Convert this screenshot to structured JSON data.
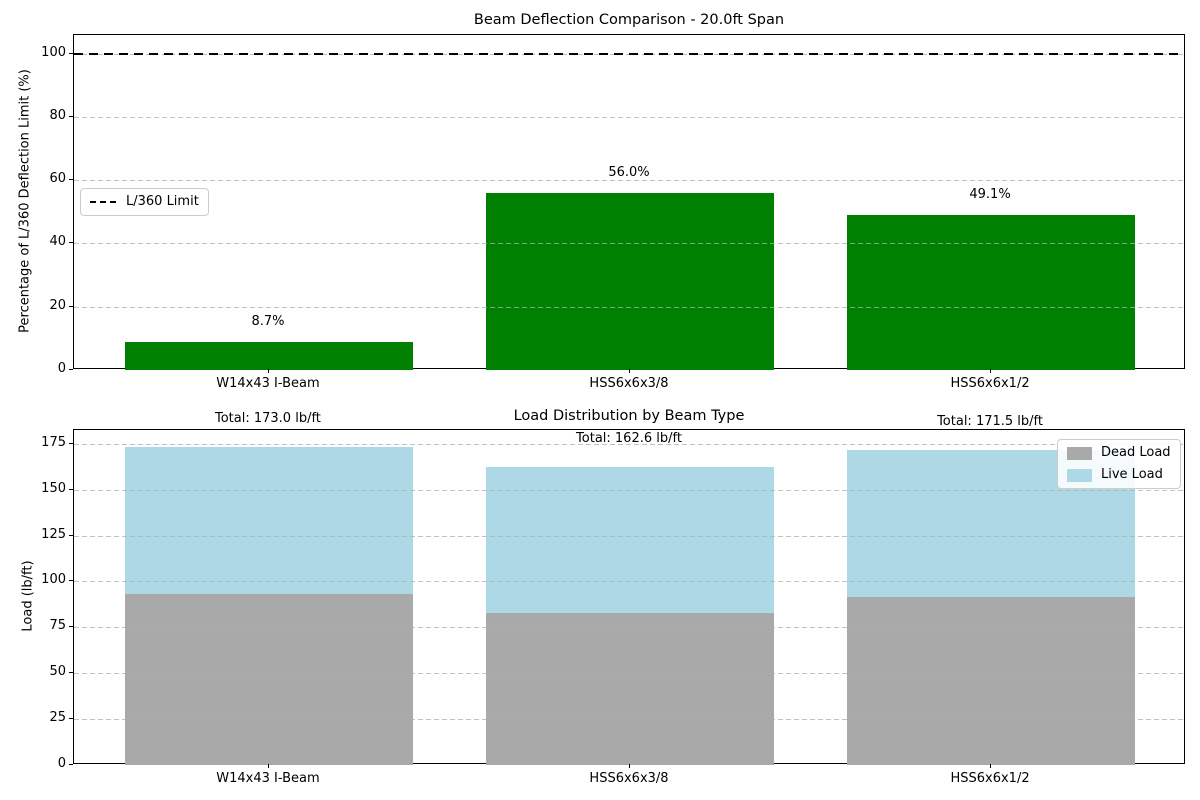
{
  "chart_data": [
    {
      "type": "bar",
      "title": "Beam Deflection Comparison - 20.0ft Span",
      "ylabel": "Percentage of L/360 Deflection Limit (%)",
      "categories": [
        "W14x43 I-Beam",
        "HSS6x6x3/8",
        "HSS6x6x1/2"
      ],
      "values": [
        8.7,
        56.0,
        49.1
      ],
      "bar_labels": [
        "8.7%",
        "56.0%",
        "49.1%"
      ],
      "bar_color": "#008000",
      "yticks": [
        0,
        20,
        40,
        60,
        80,
        100
      ],
      "ylim": [
        0,
        105.9
      ],
      "grid": true,
      "grid_style": "dashed",
      "reference_line": {
        "value": 100,
        "color": "#000000",
        "linestyle": "dashed"
      },
      "legend": {
        "position": "center-left",
        "entries": [
          {
            "label": "L/360 Limit",
            "marker": "dashed-line",
            "color": "#000000"
          }
        ]
      }
    },
    {
      "type": "stacked-bar",
      "title": "Load Distribution by Beam Type",
      "ylabel": "Load (lb/ft)",
      "categories": [
        "W14x43 I-Beam",
        "HSS6x6x3/8",
        "HSS6x6x1/2"
      ],
      "series": [
        {
          "name": "Dead Load",
          "color": "#a9a9a9",
          "values": [
            93.0,
            82.6,
            91.5
          ]
        },
        {
          "name": "Live Load",
          "color": "#add8e6",
          "values": [
            80.0,
            80.0,
            80.0
          ]
        }
      ],
      "totals": [
        173.0,
        162.6,
        171.5
      ],
      "total_labels": [
        "Total: 173.0 lb/ft",
        "Total: 162.6 lb/ft",
        "Total: 171.5 lb/ft"
      ],
      "yticks": [
        0,
        25,
        50,
        75,
        100,
        125,
        150,
        175
      ],
      "ylim": [
        0,
        182.5
      ],
      "grid": true,
      "grid_style": "dashed",
      "legend": {
        "position": "top-right",
        "entries": [
          {
            "label": "Dead Load",
            "marker": "patch",
            "color": "#a9a9a9"
          },
          {
            "label": "Live Load",
            "marker": "patch",
            "color": "#add8e6"
          }
        ]
      }
    }
  ]
}
